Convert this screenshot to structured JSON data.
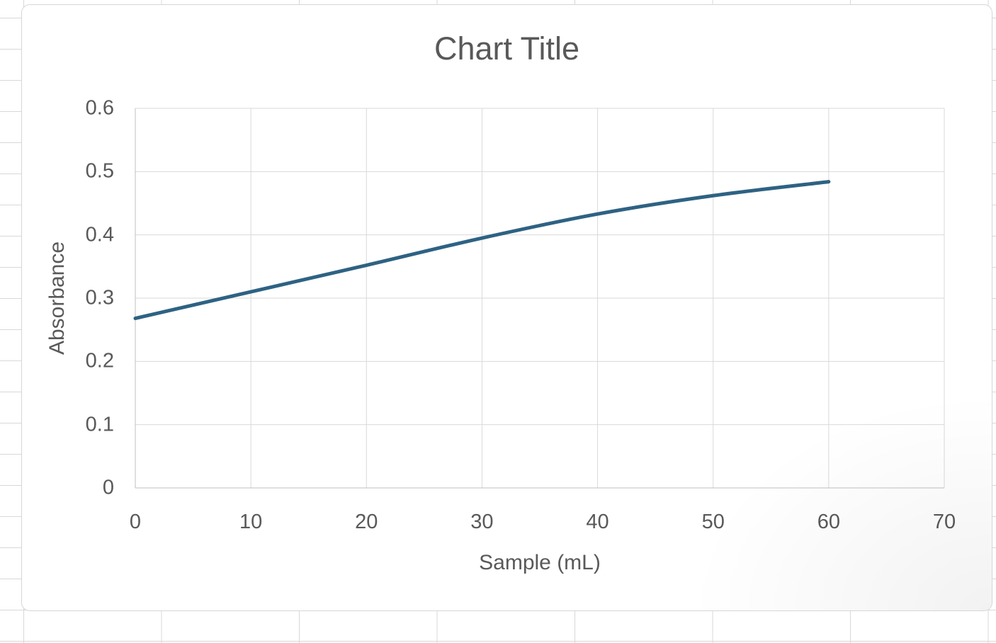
{
  "chart_data": {
    "type": "line",
    "title": "Chart Title",
    "xlabel": "Sample (mL)",
    "ylabel": "Absorbance",
    "x": [
      0,
      10,
      20,
      30,
      40,
      50,
      60
    ],
    "series": [
      {
        "name": "Absorbance",
        "values": [
          0.268,
          0.31,
          0.352,
          0.395,
          0.433,
          0.462,
          0.484
        ]
      }
    ],
    "xlim": [
      0,
      70
    ],
    "ylim": [
      0,
      0.6
    ],
    "x_ticks": [
      0,
      10,
      20,
      30,
      40,
      50,
      60,
      70
    ],
    "y_ticks": [
      0,
      0.1,
      0.2,
      0.3,
      0.4,
      0.5,
      0.6
    ],
    "grid": true,
    "legend": "none",
    "line_color": "#2E6283",
    "gridline_color": "#D9D9D9",
    "axis_line_color": "#BFBFBF",
    "text_color": "#595959",
    "chart_border_color": "#D6D6D6",
    "background_color": "#FFFFFF"
  }
}
